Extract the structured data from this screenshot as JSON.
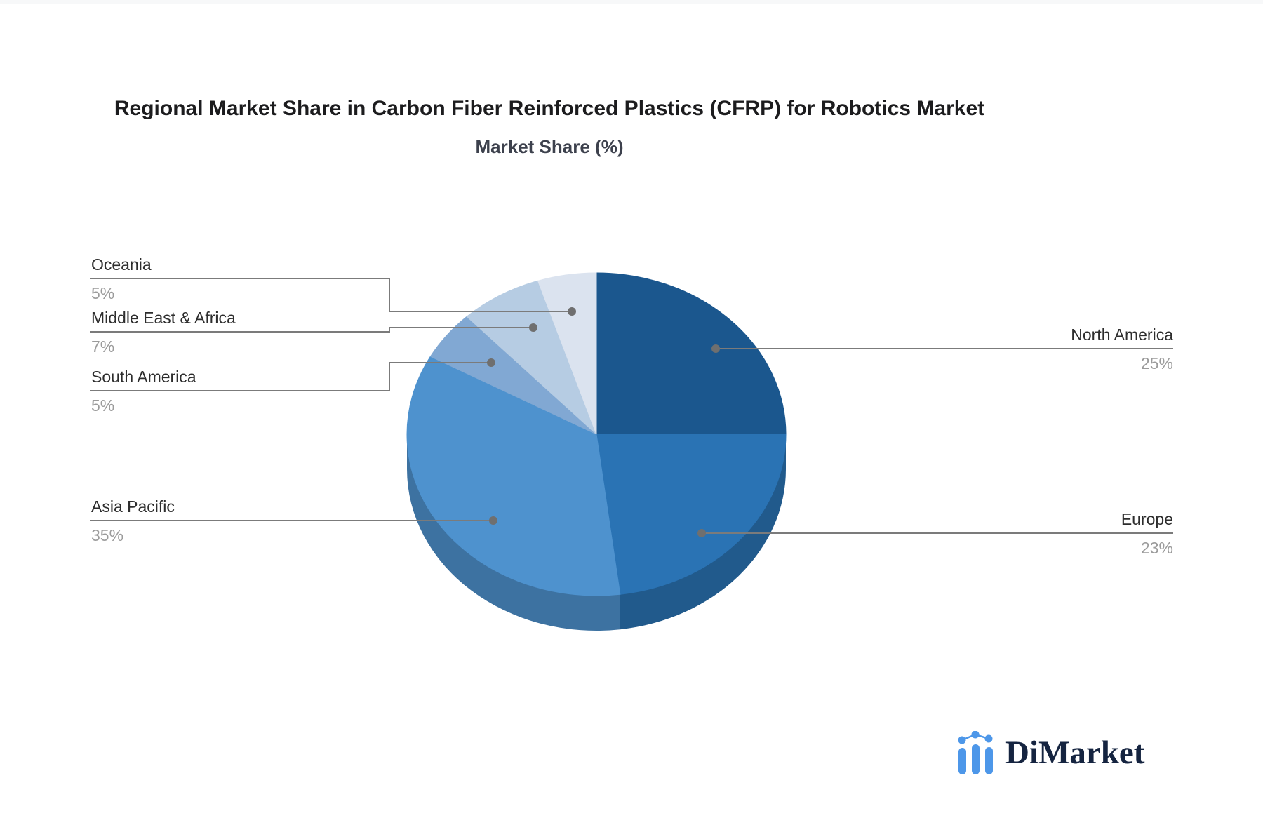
{
  "title": "Regional Market Share in Carbon Fiber Reinforced Plastics (CFRP) for Robotics Market",
  "subtitle": "Market Share (%)",
  "logo": {
    "text": "DiMarket",
    "icon": "bar-chart-logo-icon"
  },
  "chart_data": {
    "type": "pie",
    "title": "Regional Market Share in Carbon Fiber Reinforced Plastics (CFRP) for Robotics Market",
    "subtitle": "Market Share (%)",
    "unit": "%",
    "style": "3d-pie",
    "direction": "clockwise",
    "start_angle_deg": 0,
    "legend_position": "callout-labels",
    "slices": [
      {
        "label": "North America",
        "value": 25,
        "color": "#1B578E"
      },
      {
        "label": "Europe",
        "value": 23,
        "color": "#2A73B4"
      },
      {
        "label": "Asia Pacific",
        "value": 35,
        "color": "#4E92CE"
      },
      {
        "label": "South America",
        "value": 5,
        "color": "#81A8D3"
      },
      {
        "label": "Middle East & Africa",
        "value": 7,
        "color": "#B6CCE3"
      },
      {
        "label": "Oceania",
        "value": 5,
        "color": "#DBE3EF"
      }
    ],
    "label_color": "#2d2d2d",
    "value_color": "#9b9b9b",
    "leader_color": "#7b7b7b"
  }
}
